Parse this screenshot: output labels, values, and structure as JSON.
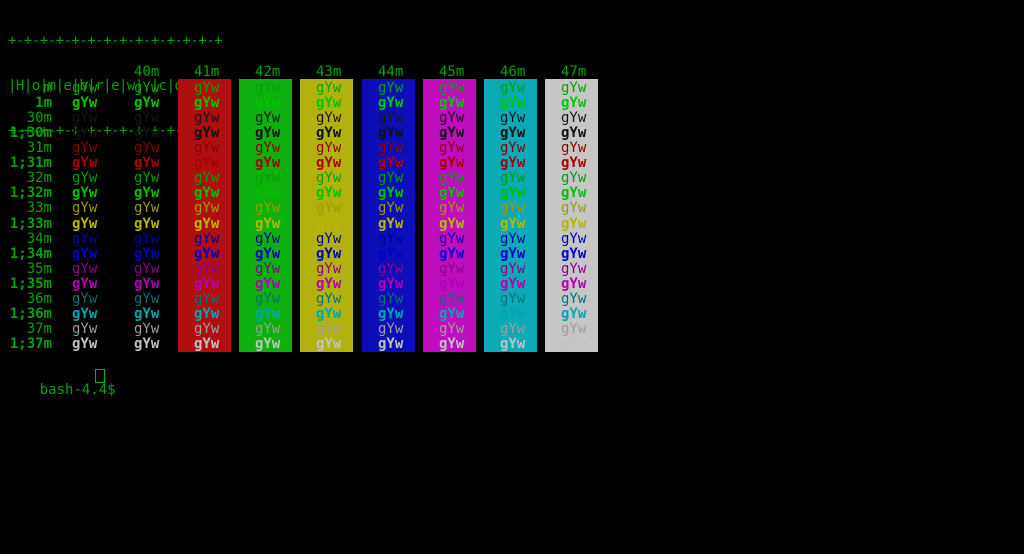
{
  "terminal": {
    "banner_lines": [
      "+-+-+-+-+-+-+-+-+-+-+-+-+-+",
      "|H|o|m|e|b|r|e|w|.|c|o|n|f|",
      "+-+-+-+-+-+-+-+-+-+-+-+-+-+"
    ],
    "prompt": "bash-4.4$",
    "colors": {
      "background": "#000000",
      "default_foreground": "#00a400",
      "cursor_outline": "#00b400"
    }
  },
  "color_grid": {
    "cell_text": "gYw",
    "columns": [
      {
        "header": "40m",
        "bg": "#000000"
      },
      {
        "header": "41m",
        "bg": "#b00f0f"
      },
      {
        "header": "42m",
        "bg": "#0db00d"
      },
      {
        "header": "43m",
        "bg": "#b2b20e"
      },
      {
        "header": "44m",
        "bg": "#0e0eb8"
      },
      {
        "header": "45m",
        "bg": "#be0ebe"
      },
      {
        "header": "46m",
        "bg": "#0baab6"
      },
      {
        "header": "47m",
        "bg": "#c6c6c6"
      }
    ],
    "rows": [
      {
        "label": "m",
        "fg": "#00a400",
        "bold": false
      },
      {
        "label": "1m",
        "fg": "#00c800",
        "bold": true
      },
      {
        "label": "30m",
        "fg": "#161616",
        "bold": false
      },
      {
        "label": "1;30m",
        "fg": "#101010",
        "bold": true
      },
      {
        "label": "31m",
        "fg": "#8c0000",
        "bold": false
      },
      {
        "label": "1;31m",
        "fg": "#aa0000",
        "bold": true
      },
      {
        "label": "32m",
        "fg": "#00a000",
        "bold": false
      },
      {
        "label": "1;32m",
        "fg": "#00c000",
        "bold": true
      },
      {
        "label": "33m",
        "fg": "#9c9c00",
        "bold": false
      },
      {
        "label": "1;33m",
        "fg": "#b8b800",
        "bold": true
      },
      {
        "label": "34m",
        "fg": "#0000a0",
        "bold": false
      },
      {
        "label": "1;34m",
        "fg": "#0000c8",
        "bold": true
      },
      {
        "label": "35m",
        "fg": "#8c008c",
        "bold": false
      },
      {
        "label": "1;35m",
        "fg": "#b400b4",
        "bold": true
      },
      {
        "label": "36m",
        "fg": "#00727c",
        "bold": false
      },
      {
        "label": "1;36m",
        "fg": "#00a6b2",
        "bold": true
      },
      {
        "label": "37m",
        "fg": "#9e9e9e",
        "bold": false
      },
      {
        "label": "1;37m",
        "fg": "#c2c2c2",
        "bold": true
      }
    ]
  }
}
